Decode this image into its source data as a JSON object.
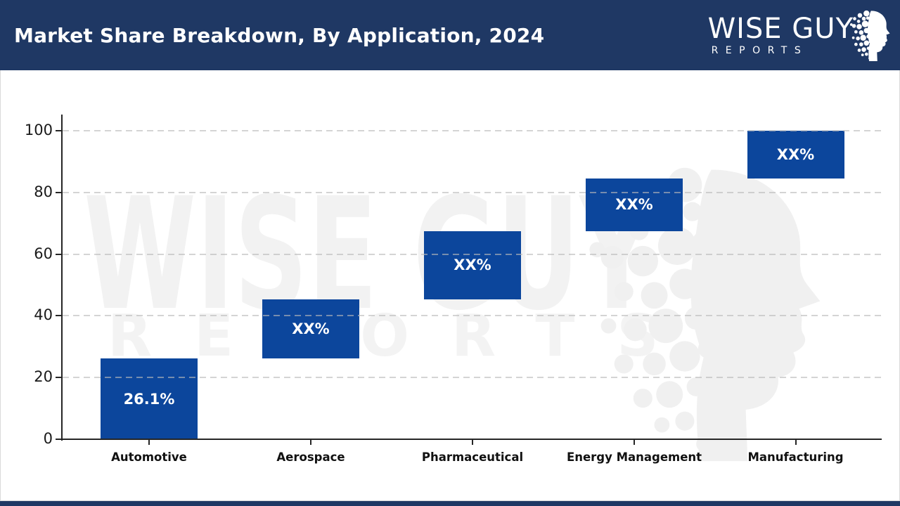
{
  "header": {
    "title": "Market Share Breakdown, By Application, 2024",
    "background": "#1f3864",
    "logo": {
      "line1": "WISE GUY",
      "line2": "REPORTS"
    }
  },
  "watermark": {
    "line1": "WISE GUY",
    "line2": "REPORTS"
  },
  "footer": {
    "background": "#1f3864"
  },
  "chart_data": {
    "type": "bar",
    "subtype": "floating-waterfall",
    "title": "Market Share Breakdown, By Application, 2024",
    "xlabel": "",
    "ylabel": "",
    "categories": [
      "Automotive",
      "Aerospace",
      "Pharmaceutical",
      "Energy Management",
      "Manufacturing"
    ],
    "segments": [
      {
        "category": "Automotive",
        "start": 0,
        "end": 26.1,
        "value": 26.1,
        "label": "26.1%"
      },
      {
        "category": "Aerospace",
        "start": 26.1,
        "end": 45.4,
        "value": 19.3,
        "label": "XX%"
      },
      {
        "category": "Pharmaceutical",
        "start": 45.4,
        "end": 67.5,
        "value": 22.1,
        "label": "XX%"
      },
      {
        "category": "Energy Management",
        "start": 67.5,
        "end": 84.5,
        "value": 17.0,
        "label": "XX%"
      },
      {
        "category": "Manufacturing",
        "start": 84.5,
        "end": 100,
        "value": 15.5,
        "label": "XX%"
      }
    ],
    "yticks": [
      0,
      20,
      40,
      60,
      80,
      100
    ],
    "ylim": [
      0,
      105
    ],
    "grid": "horizontal-dashed",
    "legend": "none",
    "colors": {
      "bar": "#0c469c",
      "bar_label": "#ffffff",
      "axis": "#262626",
      "tick_label": "#1a1a1a",
      "grid_dash": "#b9b9b9"
    }
  }
}
